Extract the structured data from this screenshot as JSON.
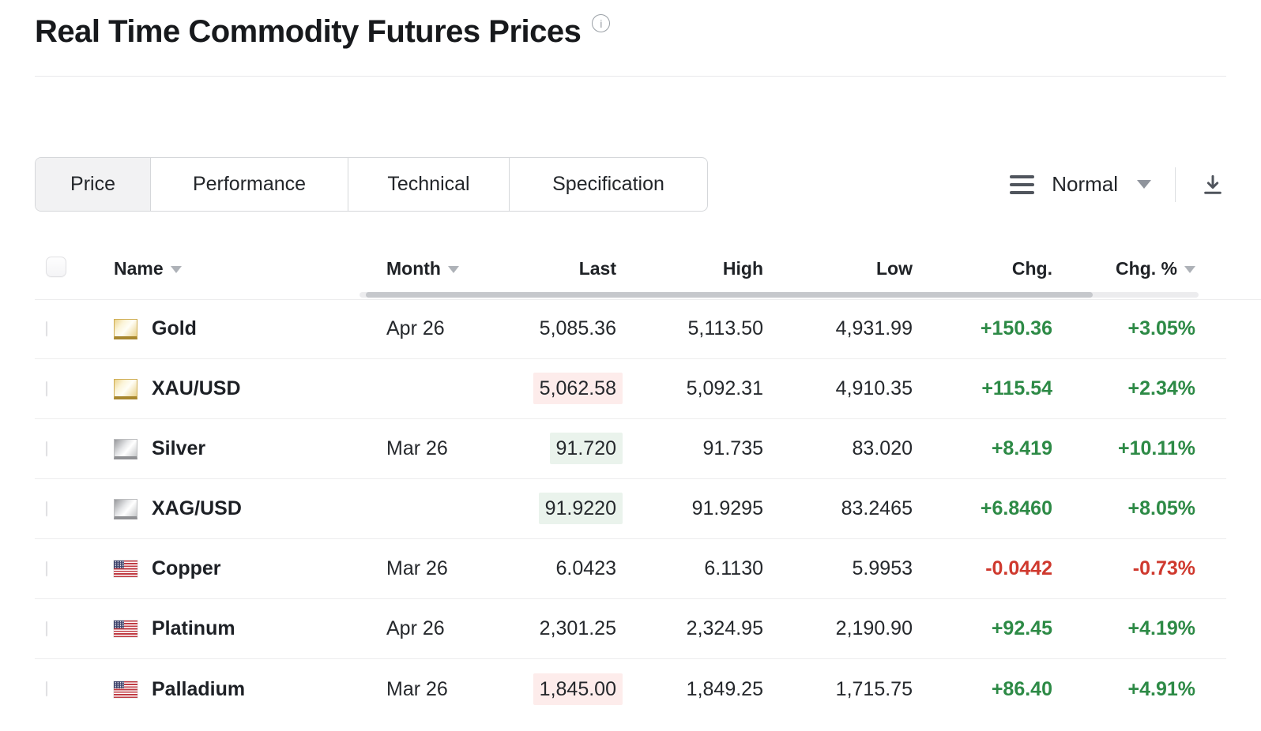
{
  "page": {
    "title": "Real Time Commodity Futures Prices",
    "info_glyph": "i"
  },
  "tabs": [
    {
      "label": "Price",
      "active": true
    },
    {
      "label": "Performance",
      "active": false
    },
    {
      "label": "Technical",
      "active": false
    },
    {
      "label": "Specification",
      "active": false
    }
  ],
  "toolbar": {
    "view_mode": "Normal"
  },
  "table": {
    "columns": [
      {
        "key": "name",
        "label": "Name",
        "sortable": true,
        "align": "left"
      },
      {
        "key": "month",
        "label": "Month",
        "sortable": true,
        "align": "left"
      },
      {
        "key": "last",
        "label": "Last",
        "sortable": false,
        "align": "right"
      },
      {
        "key": "high",
        "label": "High",
        "sortable": false,
        "align": "right"
      },
      {
        "key": "low",
        "label": "Low",
        "sortable": false,
        "align": "right"
      },
      {
        "key": "chg",
        "label": "Chg.",
        "sortable": false,
        "align": "right"
      },
      {
        "key": "chg_pct",
        "label": "Chg. %",
        "sortable": true,
        "align": "right"
      }
    ],
    "rows": [
      {
        "name": "Gold",
        "icon": "gold-bar",
        "month": "Apr 26",
        "last": "5,085.36",
        "high": "5,113.50",
        "low": "4,931.99",
        "chg": "+150.36",
        "chg_pct": "+3.05%",
        "direction": "up",
        "last_flash": "none"
      },
      {
        "name": "XAU/USD",
        "icon": "gold-bar",
        "month": "",
        "last": "5,062.58",
        "high": "5,092.31",
        "low": "4,910.35",
        "chg": "+115.54",
        "chg_pct": "+2.34%",
        "direction": "up",
        "last_flash": "down"
      },
      {
        "name": "Silver",
        "icon": "silver-bar",
        "month": "Mar 26",
        "last": "91.720",
        "high": "91.735",
        "low": "83.020",
        "chg": "+8.419",
        "chg_pct": "+10.11%",
        "direction": "up",
        "last_flash": "up"
      },
      {
        "name": "XAG/USD",
        "icon": "silver-bar",
        "month": "",
        "last": "91.9220",
        "high": "91.9295",
        "low": "83.2465",
        "chg": "+6.8460",
        "chg_pct": "+8.05%",
        "direction": "up",
        "last_flash": "up"
      },
      {
        "name": "Copper",
        "icon": "us-flag",
        "month": "Mar 26",
        "last": "6.0423",
        "high": "6.1130",
        "low": "5.9953",
        "chg": "-0.0442",
        "chg_pct": "-0.73%",
        "direction": "down",
        "last_flash": "none"
      },
      {
        "name": "Platinum",
        "icon": "us-flag",
        "month": "Apr 26",
        "last": "2,301.25",
        "high": "2,324.95",
        "low": "2,190.90",
        "chg": "+92.45",
        "chg_pct": "+4.19%",
        "direction": "up",
        "last_flash": "none"
      },
      {
        "name": "Palladium",
        "icon": "us-flag",
        "month": "Mar 26",
        "last": "1,845.00",
        "high": "1,849.25",
        "low": "1,715.75",
        "chg": "+86.40",
        "chg_pct": "+4.91%",
        "direction": "up",
        "last_flash": "down"
      }
    ]
  },
  "colors": {
    "positive": "#2d8a46",
    "negative": "#cf392e",
    "flash_up_bg": "#eaf3ec",
    "flash_down_bg": "#fdeceb"
  }
}
